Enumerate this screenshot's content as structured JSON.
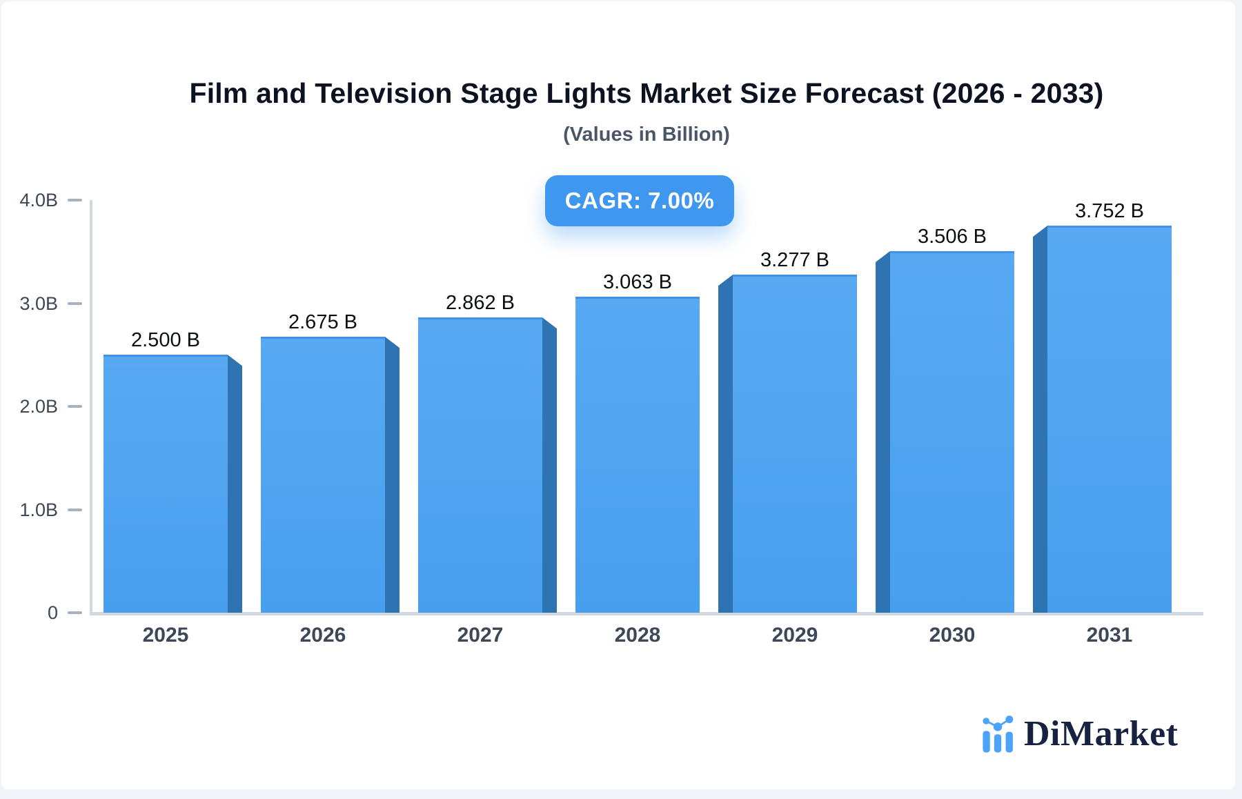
{
  "header": {
    "title": "Film and Television Stage Lights Market Size Forecast (2026 - 2033)",
    "subtitle": "(Values in Billion)",
    "cagr_badge": "CAGR: 7.00%"
  },
  "footer": {
    "brand": "DiMarket"
  },
  "colors": {
    "bar_face_top": "#58a9f2",
    "bar_face_bottom": "#489fee",
    "bar_side": "#2f74b2",
    "badge_bg": "#3f97ef",
    "axis_line": "#d2d8e0",
    "tick_dash": "#a9b2bc",
    "brand_blue": "#4da3f7",
    "brand_navy": "#16223f"
  },
  "chart_data": {
    "type": "bar",
    "title": "Film and Television Stage Lights Market Size Forecast (2026 - 2033)",
    "subtitle": "(Values in Billion)",
    "annotation": "CAGR: 7.00%",
    "categories": [
      "2025",
      "2026",
      "2027",
      "2028",
      "2029",
      "2030",
      "2031"
    ],
    "values": [
      2.5,
      2.675,
      2.862,
      3.063,
      3.277,
      3.506,
      3.752
    ],
    "value_labels": [
      "2.500 B",
      "2.675 B",
      "2.862 B",
      "3.063 B",
      "3.277 B",
      "3.506 B",
      "3.752 B"
    ],
    "unit": "Billion",
    "xlabel": "",
    "ylabel": "",
    "ylim": [
      0,
      4
    ],
    "grid": false,
    "legend": false,
    "y_ticks": [
      {
        "label": "0",
        "value": 0
      },
      {
        "label": "1.0B",
        "value": 1
      },
      {
        "label": "2.0B",
        "value": 2
      },
      {
        "label": "3.0B",
        "value": 3
      },
      {
        "label": "4.0B",
        "value": 4
      }
    ]
  }
}
